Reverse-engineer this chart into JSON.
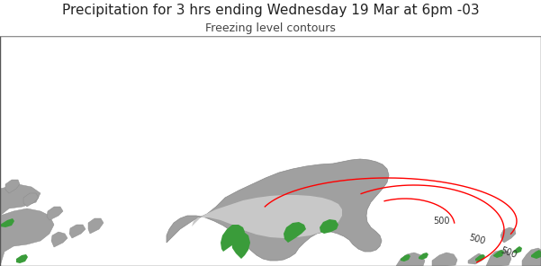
{
  "title": "Precipitation for 3 hrs ending Wednesday 19 Mar at 6pm -03",
  "subtitle": "Freezing level contours",
  "title_fontsize": 11,
  "subtitle_fontsize": 9,
  "bg_color": "#ffffff",
  "map_bg_color": "#c8d4e8",
  "header_bg": "#ffffff",
  "figsize": [
    6.01,
    2.96
  ],
  "dpi": 100
}
